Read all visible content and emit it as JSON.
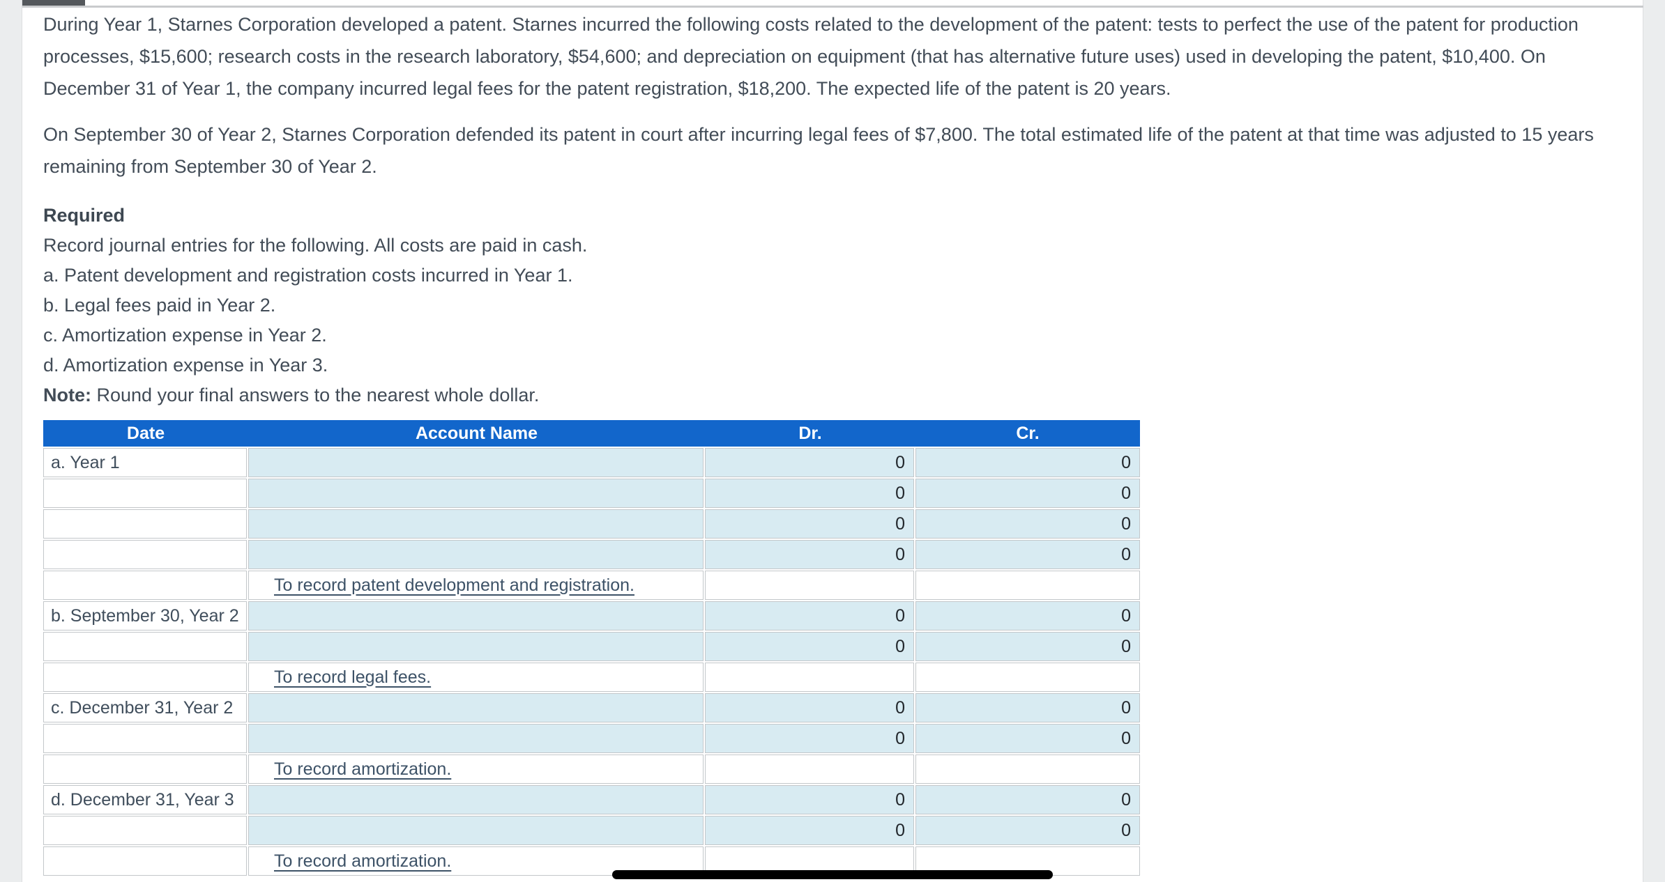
{
  "problem": {
    "paragraph1": "During Year 1, Starnes Corporation developed a patent. Starnes incurred the following costs related to the development of the patent: tests to perfect the use of the patent for production processes, $15,600; research costs in the research laboratory, $54,600; and depreciation on equipment (that has alternative future uses) used in developing the patent, $10,400. On December 31 of Year 1, the company incurred legal fees for the patent registration, $18,200. The expected life of the patent is 20 years.",
    "paragraph2": "On September 30 of Year 2, Starnes Corporation defended its patent in court after incurring legal fees of $7,800. The total estimated life of the patent at that time was adjusted to 15 years remaining from September 30 of Year 2.",
    "required_label": "Required",
    "required_intro": "Record journal entries for the following. All costs are paid in cash.",
    "required_items": [
      "a. Patent development and registration costs incurred in Year 1.",
      "b. Legal fees paid in Year 2.",
      "c. Amortization expense in Year 2.",
      "d. Amortization expense in Year 3."
    ],
    "note_label": "Note:",
    "note_text": " Round your final answers to the nearest whole dollar."
  },
  "journal_table": {
    "columns": [
      "Date",
      "Account Name",
      "Dr.",
      "Cr."
    ],
    "rows": [
      {
        "kind": "entry",
        "date": "a. Year 1",
        "account": "",
        "dr": "0",
        "cr": "0"
      },
      {
        "kind": "entry",
        "date": "",
        "account": "",
        "dr": "0",
        "cr": "0"
      },
      {
        "kind": "entry",
        "date": "",
        "account": "",
        "dr": "0",
        "cr": "0"
      },
      {
        "kind": "entry",
        "date": "",
        "account": "",
        "dr": "0",
        "cr": "0"
      },
      {
        "kind": "memo",
        "date": "",
        "account": "To record patent development and registration.",
        "dr": "",
        "cr": ""
      },
      {
        "kind": "entry",
        "date": "b. September 30, Year 2",
        "account": "",
        "dr": "0",
        "cr": "0"
      },
      {
        "kind": "entry",
        "date": "",
        "account": "",
        "dr": "0",
        "cr": "0"
      },
      {
        "kind": "memo",
        "date": "",
        "account": "To record legal fees.",
        "dr": "",
        "cr": ""
      },
      {
        "kind": "entry",
        "date": "c. December 31, Year 2",
        "account": "",
        "dr": "0",
        "cr": "0"
      },
      {
        "kind": "entry",
        "date": "",
        "account": "",
        "dr": "0",
        "cr": "0"
      },
      {
        "kind": "memo",
        "date": "",
        "account": "To record amortization.",
        "dr": "",
        "cr": ""
      },
      {
        "kind": "entry",
        "date": "d. December 31, Year 3",
        "account": "",
        "dr": "0",
        "cr": "0"
      },
      {
        "kind": "entry",
        "date": "",
        "account": "",
        "dr": "0",
        "cr": "0"
      },
      {
        "kind": "memo",
        "date": "",
        "account": "To record amortization.",
        "dr": "",
        "cr": ""
      }
    ]
  },
  "colors": {
    "header_blue": "#1266cb",
    "cell_light_blue": "#d8ebf2",
    "memo_link_navy": "#3d5267",
    "body_text": "#424c57",
    "cell_border_gray": "#c3c7ca",
    "side_strip_gray": "#ebedee",
    "redaction_bar_black": "#000000"
  }
}
